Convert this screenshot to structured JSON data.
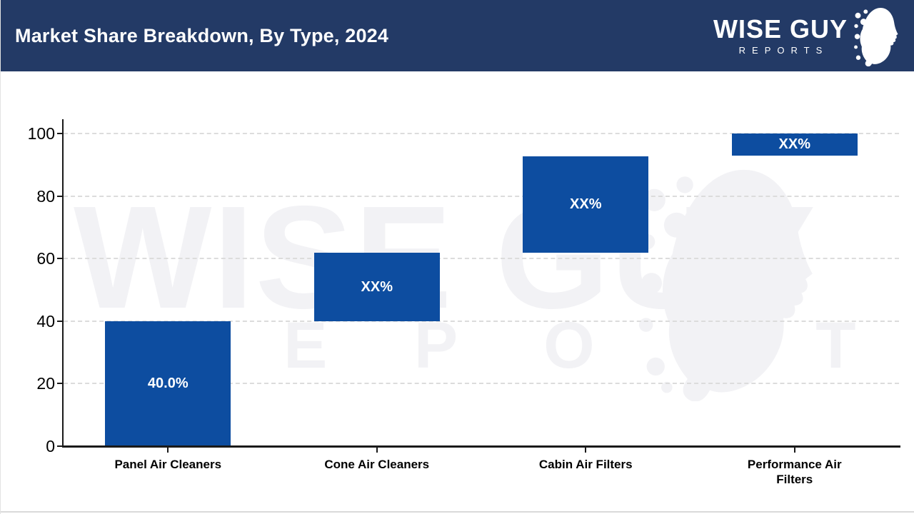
{
  "header": {
    "title": "Market Share Breakdown, By Type, 2024",
    "logo": {
      "line1": "WISE GUY",
      "line2": "REPORTS"
    }
  },
  "watermark": {
    "line1": "WISE GUY",
    "line2": "R E P O R T S"
  },
  "colors": {
    "header_bg": "#233a66",
    "bar": "#0d4da0",
    "bar_label": "#ffffff",
    "gridline": "#dcdcdc",
    "axis": "#1a1a1a",
    "watermark": "#f2f2f5"
  },
  "chart_data": {
    "type": "bar",
    "subtype": "waterfall",
    "title": "Market Share Breakdown, By Type, 2024",
    "categories": [
      "Panel Air Cleaners",
      "Cone Air Cleaners",
      "Cabin Air Filters",
      "Performance Air Filters"
    ],
    "segments": [
      {
        "category": "Panel Air Cleaners",
        "start": 0,
        "end": 40,
        "label": "40.0%"
      },
      {
        "category": "Cone Air Cleaners",
        "start": 40,
        "end": 61.8,
        "label": "XX%"
      },
      {
        "category": "Cabin Air Filters",
        "start": 61.8,
        "end": 92.6,
        "label": "XX%"
      },
      {
        "category": "Performance Air Filters",
        "start": 93,
        "end": 100,
        "label": "XX%"
      }
    ],
    "xlabel": "",
    "ylabel": "",
    "ylim": [
      0,
      100
    ],
    "yticks": [
      0,
      20,
      40,
      60,
      80,
      100
    ],
    "grid": "horizontal-dashed",
    "legend": null
  }
}
